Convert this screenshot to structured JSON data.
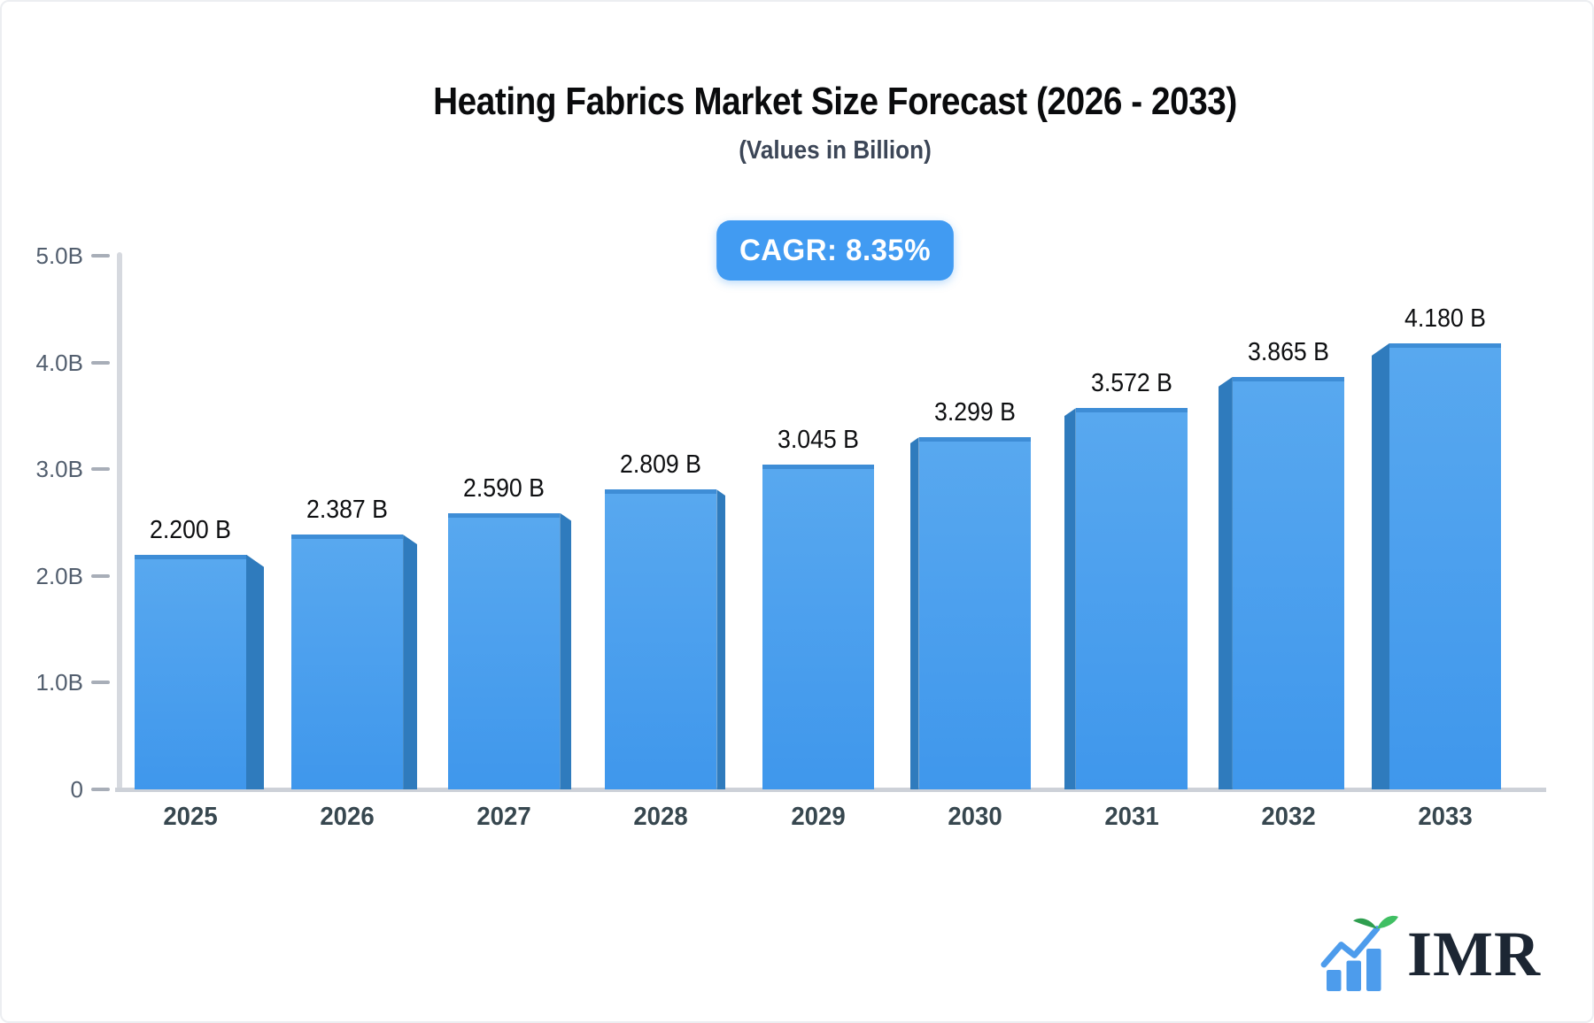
{
  "header": {
    "title": "Heating Fabrics Market Size Forecast (2026 - 2033)",
    "subtitle": "(Values in Billion)",
    "cagr_label": "CAGR: 8.35%"
  },
  "chart_data": {
    "type": "bar",
    "title": "Heating Fabrics Market Size Forecast (2026 - 2033)",
    "subtitle": "(Values in Billion)",
    "cagr": "8.35%",
    "unit": "Billion",
    "categories": [
      "2025",
      "2026",
      "2027",
      "2028",
      "2029",
      "2030",
      "2031",
      "2032",
      "2033"
    ],
    "values": [
      2.2,
      2.387,
      2.59,
      2.809,
      3.045,
      3.299,
      3.572,
      3.865,
      4.18
    ],
    "value_labels": [
      "2.200 B",
      "2.387 B",
      "2.590 B",
      "2.809 B",
      "3.045 B",
      "3.299 B",
      "3.572 B",
      "3.865 B",
      "4.180 B"
    ],
    "xlabel": "",
    "ylabel": "",
    "ylim": [
      0,
      5.0
    ],
    "y_ticks": [
      "0",
      "1.0B",
      "2.0B",
      "3.0B",
      "4.0B",
      "5.0B"
    ],
    "grid": false,
    "legend": false,
    "style": "3d-extruded-bars"
  },
  "colors": {
    "bar_front_top": "#58a8ef",
    "bar_front_bottom": "#3f97ec",
    "bar_side": "#2f7bbd",
    "bar_top_edge": "#3e8dd6",
    "badge_bg": "#419bf2",
    "axis_line": "#d6d9df",
    "baseline": "#cdd1d8",
    "value_label_text": "#0e0f11",
    "x_label_text": "#37474f",
    "y_label_text": "#525e6e",
    "logo_blue": "#4d9cec",
    "logo_green": "#2e9e4f",
    "logo_text_color": "#1c2633"
  },
  "logo": {
    "text": "IMR"
  }
}
